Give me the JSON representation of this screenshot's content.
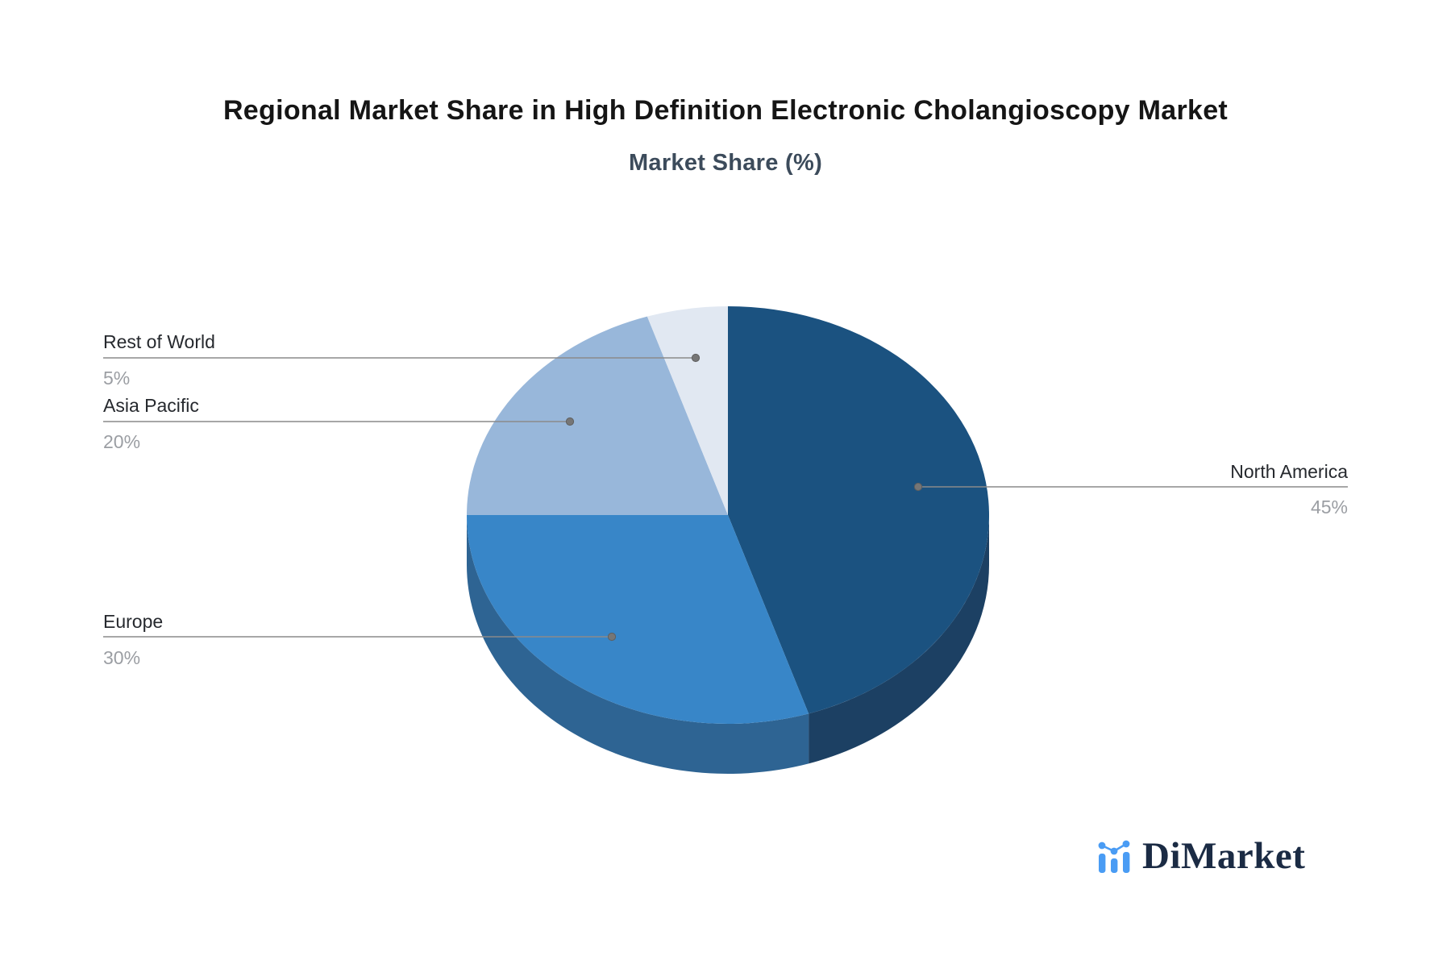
{
  "header": {
    "title": "Regional Market Share in High Definition Electronic Cholangioscopy Market",
    "subtitle": "Market Share (%)"
  },
  "chart_data": {
    "type": "pie",
    "style": "3d",
    "title": "Regional Market Share in High Definition Electronic Cholangioscopy Market",
    "subtitle": "Market Share (%)",
    "unit": "%",
    "direction": "clockwise",
    "start_angle_deg": 0,
    "legend": "callout-leader-lines",
    "slices": [
      {
        "label": "North America",
        "value": 45,
        "value_text": "45%",
        "color": "#1b5280",
        "side_color": "#1c4063",
        "callout_side": "right"
      },
      {
        "label": "Europe",
        "value": 30,
        "value_text": "30%",
        "color": "#3886c8",
        "side_color": "#2e6493",
        "callout_side": "left"
      },
      {
        "label": "Asia Pacific",
        "value": 20,
        "value_text": "20%",
        "color": "#98b7da",
        "side_color": "#6f9cc4",
        "callout_side": "left"
      },
      {
        "label": "Rest of World",
        "value": 5,
        "value_text": "5%",
        "color": "#e1e8f2",
        "side_color": "#b9c6d8",
        "callout_side": "left"
      }
    ]
  },
  "branding": {
    "name": "DiMarket",
    "icon": "bar-line-chart-icon",
    "icon_color": "#4a9cf4",
    "text_color": "#1b2b44"
  },
  "colors": {
    "background": "#ffffff",
    "title": "#151515",
    "subtitle": "#3c4b5b",
    "callout_label": "#26292e",
    "callout_value": "#9b9ea3",
    "leader_line": "#8a8a8a",
    "leader_dot": "#767676"
  }
}
